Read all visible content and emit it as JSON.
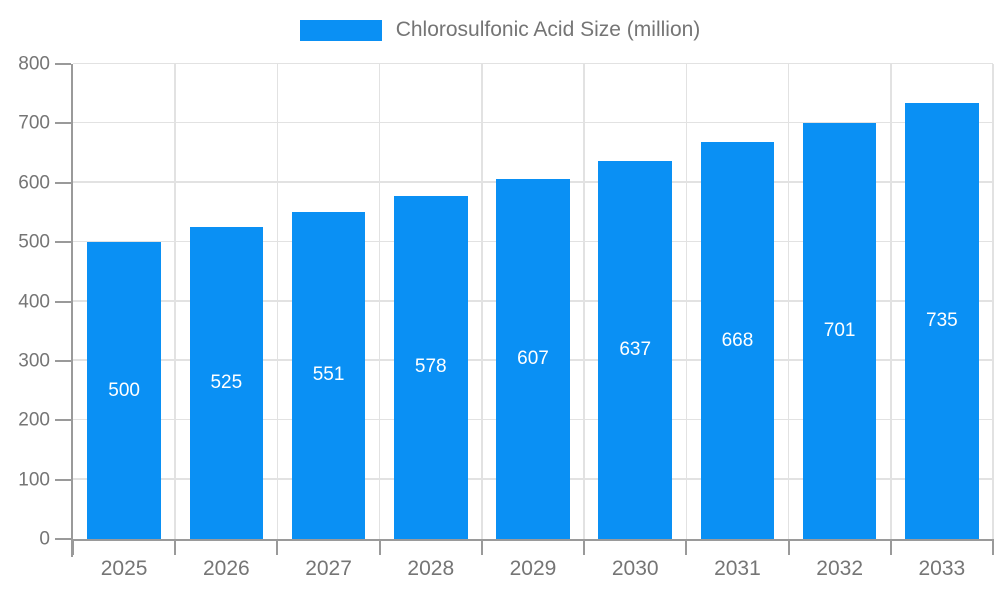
{
  "legend": {
    "label": "Chlorosulfonic Acid Size (million)"
  },
  "colors": {
    "bar": "#0a90f4",
    "axis": "#9a9a9a",
    "grid": "#e2e2e2",
    "text": "#757575",
    "bar_label": "#ffffff",
    "background": "#ffffff"
  },
  "chart_data": {
    "type": "bar",
    "categories": [
      "2025",
      "2026",
      "2027",
      "2028",
      "2029",
      "2030",
      "2031",
      "2032",
      "2033"
    ],
    "values": [
      500,
      525,
      551,
      578,
      607,
      637,
      668,
      701,
      735
    ],
    "title": "Chlorosulfonic Acid Size (million)",
    "xlabel": "",
    "ylabel": "",
    "ylim": [
      0,
      800
    ],
    "y_ticks": [
      0,
      100,
      200,
      300,
      400,
      500,
      600,
      700,
      800
    ],
    "grid": true,
    "legend_position": "top",
    "bar_labels": true
  }
}
